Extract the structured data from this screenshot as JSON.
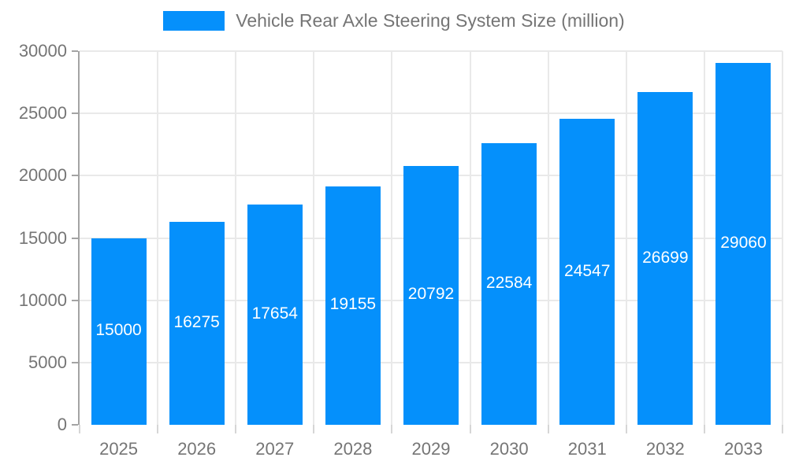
{
  "chart_data": {
    "type": "bar",
    "title": "Vehicle Rear Axle Steering System Size (million)",
    "legend": {
      "position": "top",
      "entries": [
        {
          "label": "Vehicle Rear Axle Steering System Size (million)",
          "color": "#0590fb"
        }
      ]
    },
    "categories": [
      "2025",
      "2026",
      "2027",
      "2028",
      "2029",
      "2030",
      "2031",
      "2032",
      "2033"
    ],
    "series": [
      {
        "name": "Vehicle Rear Axle Steering System Size (million)",
        "values": [
          15000,
          16275,
          17654,
          19155,
          20792,
          22584,
          24547,
          26699,
          29060
        ]
      }
    ],
    "data_labels": [
      "15000",
      "16275",
      "17654",
      "19155",
      "20792",
      "22584",
      "24547",
      "26699",
      "29060"
    ],
    "xlabel": "",
    "ylabel": "",
    "ylim": [
      0,
      30000
    ],
    "yticks": [
      0,
      5000,
      10000,
      15000,
      20000,
      25000,
      30000
    ],
    "ytick_labels": [
      "0",
      "5000",
      "10000",
      "15000",
      "20000",
      "25000",
      "30000"
    ],
    "grid": "on",
    "colors": {
      "bar": "#0590fb",
      "bar_label_text": "#ffffff",
      "axis_text": "#757575",
      "legend_text": "#757575",
      "gridline": "#e9e9e9",
      "axis_line": "#a3a3a3",
      "background": "#ffffff"
    }
  }
}
